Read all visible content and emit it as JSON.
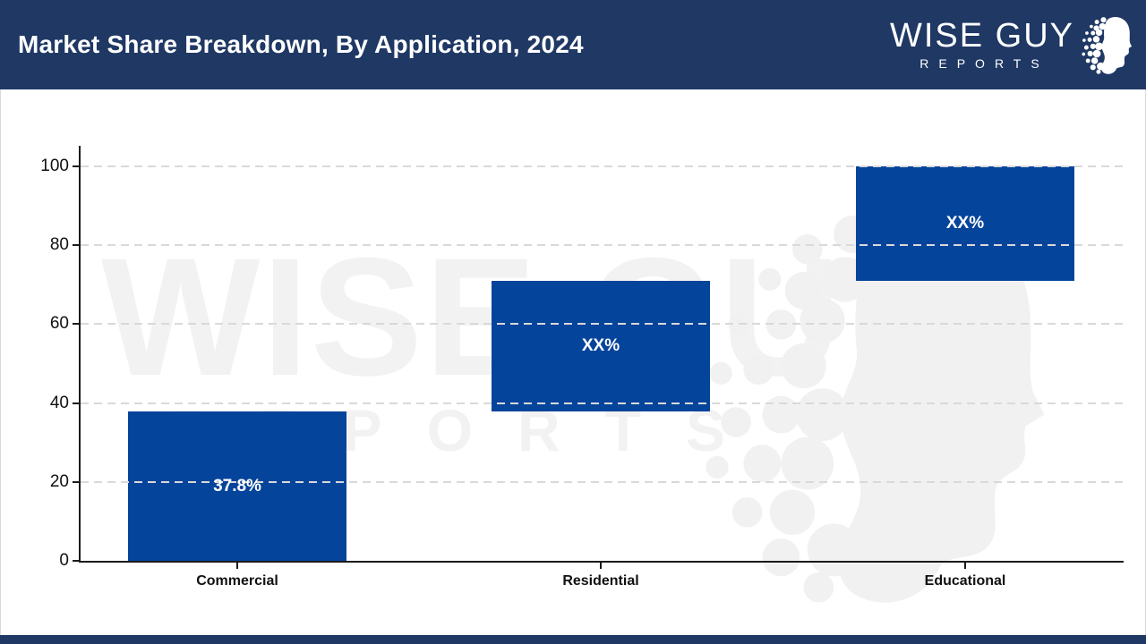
{
  "header": {
    "title": "Market Share Breakdown, By Application, 2024",
    "logo": {
      "line1": "WISE GUY",
      "line2": "REPORTS"
    }
  },
  "watermark": {
    "line1": "WISE GUY",
    "line2": "REPORTS"
  },
  "colors": {
    "header_bg": "#1F3864",
    "footer_bg": "#1F3864",
    "bar": "#05449B",
    "bar_label": "#FFFFFF",
    "grid": "#D9D9D9",
    "axis": "#1A1A1A",
    "watermark": "#F2F2F2"
  },
  "chart_data": {
    "type": "bar",
    "variant": "floating-segments (waterfall style, each bar starts where previous ends)",
    "title": "Market Share Breakdown, By Application, 2024",
    "categories": [
      "Commercial",
      "Residential",
      "Educational"
    ],
    "bars": [
      {
        "category": "Commercial",
        "base": 0,
        "top": 37.8,
        "label": "37.8%"
      },
      {
        "category": "Residential",
        "base": 37.8,
        "top": 71,
        "label": "XX%"
      },
      {
        "category": "Educational",
        "base": 71,
        "top": 100,
        "label": "XX%"
      }
    ],
    "yticks": [
      0,
      20,
      40,
      60,
      80,
      100
    ],
    "ylim": [
      0,
      105
    ],
    "xlabel": "",
    "ylabel": "",
    "grid": "horizontal dashed, drawn above bars",
    "legend": "none"
  }
}
